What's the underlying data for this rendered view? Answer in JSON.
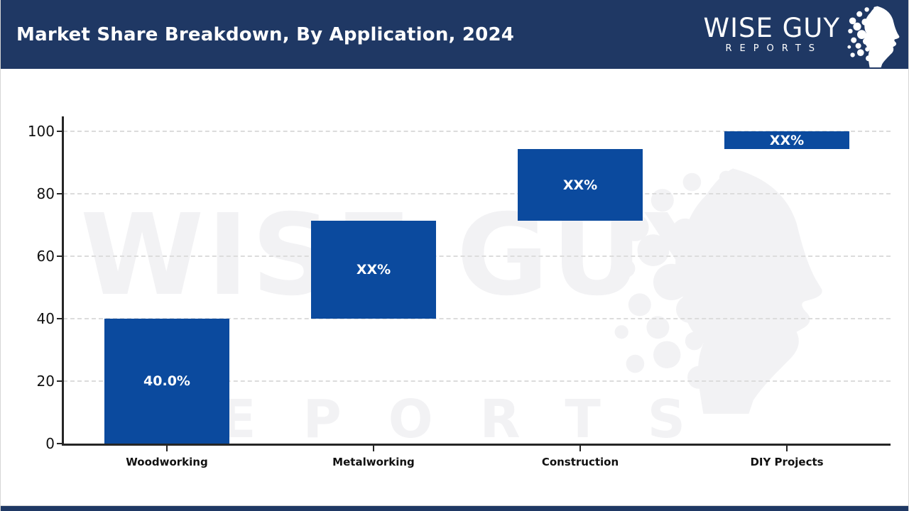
{
  "header": {
    "title": "Market Share Breakdown, By Application, 2024",
    "bg_color": "#1f3864",
    "logo": {
      "line1": "WISE GUY",
      "line2": "REPORTS"
    }
  },
  "watermark": {
    "line1": "WISE GUY",
    "line2": "REPORTS"
  },
  "chart_data": {
    "type": "bar",
    "subtype": "waterfall",
    "title": "Market Share Breakdown, By Application, 2024",
    "categories": [
      "Woodworking",
      "Metalworking",
      "Construction",
      "DIY Projects"
    ],
    "series": [
      {
        "name": "Market Share %",
        "segments": [
          {
            "category": "Woodworking",
            "start": 0,
            "end": 40,
            "label": "40.0%"
          },
          {
            "category": "Metalworking",
            "start": 40,
            "end": 71.4,
            "label": "XX%"
          },
          {
            "category": "Construction",
            "start": 71.4,
            "end": 94.3,
            "label": "XX%"
          },
          {
            "category": "DIY Projects",
            "start": 94.3,
            "end": 100,
            "label": "XX%"
          }
        ]
      }
    ],
    "xlabel": "",
    "ylabel": "",
    "ylim": [
      0,
      100
    ],
    "yticks": [
      0,
      20,
      40,
      60,
      80,
      100
    ],
    "grid": "horizontal-dashed",
    "legend": "none",
    "bar_color": "#0b4a9e",
    "bar_label_color": "#ffffff",
    "axis_color": "#262626"
  }
}
